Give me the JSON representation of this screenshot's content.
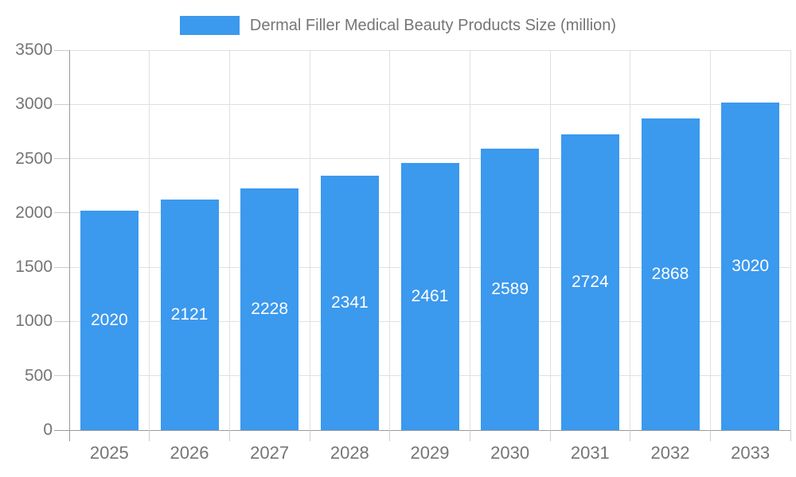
{
  "legend": {
    "label": "Dermal Filler Medical Beauty Products Size (million)"
  },
  "chart_data": {
    "type": "bar",
    "title": "Dermal Filler Medical Beauty Products Size (million)",
    "categories": [
      "2025",
      "2026",
      "2027",
      "2028",
      "2029",
      "2030",
      "2031",
      "2032",
      "2033"
    ],
    "values": [
      2020,
      2121,
      2228,
      2341,
      2461,
      2589,
      2724,
      2868,
      3020
    ],
    "xlabel": "",
    "ylabel": "",
    "ylim": [
      0,
      3500
    ],
    "yticks": [
      0,
      500,
      1000,
      1500,
      2000,
      2500,
      3000,
      3500
    ],
    "grid": true,
    "legend_position": "top",
    "value_labels": "inside-center",
    "colors": {
      "bar": "#3B99EE",
      "value_label": "#FFFFFF",
      "axis": "#999999",
      "gridline": "#E0E0E0",
      "tick": "#CCCCCC",
      "text": "#757575"
    }
  }
}
